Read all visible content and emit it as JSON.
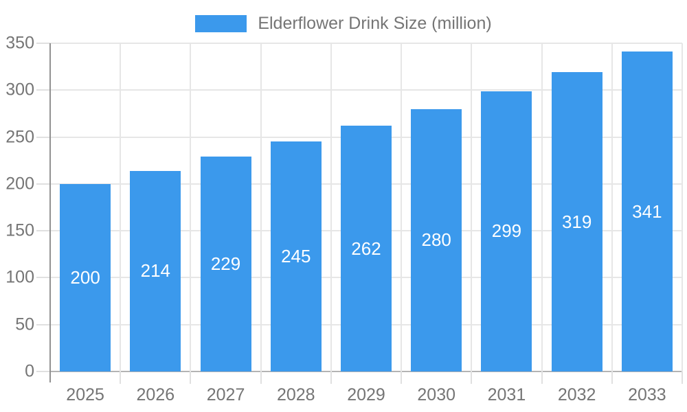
{
  "legend": {
    "label": "Elderflower Drink Size (million)"
  },
  "chart_data": {
    "type": "bar",
    "title": "",
    "xlabel": "",
    "ylabel": "",
    "legend_entries": [
      "Elderflower Drink Size (million)"
    ],
    "legend_position": "top-center",
    "categories": [
      "2025",
      "2026",
      "2027",
      "2028",
      "2029",
      "2030",
      "2031",
      "2032",
      "2033"
    ],
    "values": [
      200,
      214,
      229,
      245,
      262,
      280,
      299,
      319,
      341
    ],
    "value_labels_shown": true,
    "ylim": [
      0,
      350
    ],
    "yticks": [
      0,
      50,
      100,
      150,
      200,
      250,
      300,
      350
    ],
    "grid": true
  },
  "colors": {
    "bar": "#3b99ec",
    "value_text": "#ffffff",
    "axis_text": "#757575",
    "gridline": "#e6e6e6",
    "tick": "#e0e0e0",
    "baseline": "#b3b3b3",
    "y_axis_line": "#919191",
    "background": "#ffffff"
  }
}
